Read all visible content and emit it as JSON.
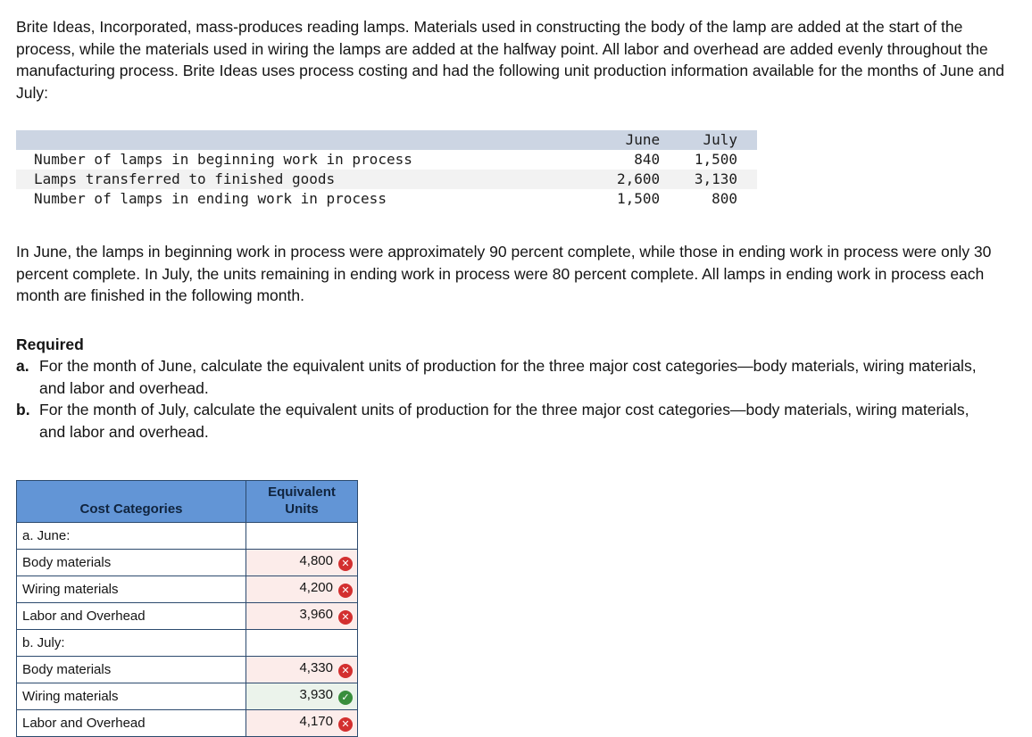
{
  "intro": "Brite Ideas, Incorporated, mass-produces reading lamps. Materials used in constructing the body of the lamp are added at the start of the process, while the materials used in wiring the lamps are added at the halfway point. All labor and overhead are added evenly throughout the manufacturing process. Brite Ideas uses process costing and had the following unit production information available for the months of June and July:",
  "data_table": {
    "columns": [
      "June",
      "July"
    ],
    "rows": [
      {
        "label": "Number of lamps in beginning work in process",
        "june": "840",
        "july": "1,500"
      },
      {
        "label": "Lamps transferred to finished goods",
        "june": "2,600",
        "july": "3,130"
      },
      {
        "label": "Number of lamps in ending work in process",
        "june": "1,500",
        "july": "800"
      }
    ]
  },
  "paragraph2": "In June, the lamps in beginning work in process were approximately 90 percent complete, while those in ending work in process were only 30 percent complete. In July, the units remaining in ending work in process were 80 percent complete. All lamps in ending work in process each month are finished in the following month.",
  "required": {
    "heading": "Required",
    "items": [
      {
        "letter": "a.",
        "text": "For the month of June, calculate the equivalent units of production for the three major cost categories—body materials, wiring materials, and labor and overhead."
      },
      {
        "letter": "b.",
        "text": "For the month of July, calculate the equivalent units of production for the three major cost categories—body materials, wiring materials, and labor and overhead."
      }
    ]
  },
  "answer_table": {
    "headers": {
      "category": "Cost Categories",
      "units": "Equivalent Units"
    },
    "rows": [
      {
        "label": "a. June:",
        "section": true
      },
      {
        "label": "Body materials",
        "value": "4,800",
        "status": "wrong"
      },
      {
        "label": "Wiring materials",
        "value": "4,200",
        "status": "wrong"
      },
      {
        "label": "Labor and Overhead",
        "value": "3,960",
        "status": "wrong"
      },
      {
        "label": "b. July:",
        "section": true
      },
      {
        "label": "Body materials",
        "value": "4,330",
        "status": "wrong"
      },
      {
        "label": "Wiring materials",
        "value": "3,930",
        "status": "correct"
      },
      {
        "label": "Labor and Overhead",
        "value": "4,170",
        "status": "wrong"
      }
    ]
  },
  "icons": {
    "incorrect": "✕",
    "correct": "✓"
  },
  "colors": {
    "header_blue": "#6295d6",
    "table_border": "#2c4a6e",
    "mono_header_bg": "#ccd5e3",
    "alt_row_bg": "#f2f2f2",
    "wrong_bg": "#fcecea",
    "correct_bg": "#ebf3eb",
    "wrong_icon": "#d32f2f",
    "correct_icon": "#388e3c"
  }
}
